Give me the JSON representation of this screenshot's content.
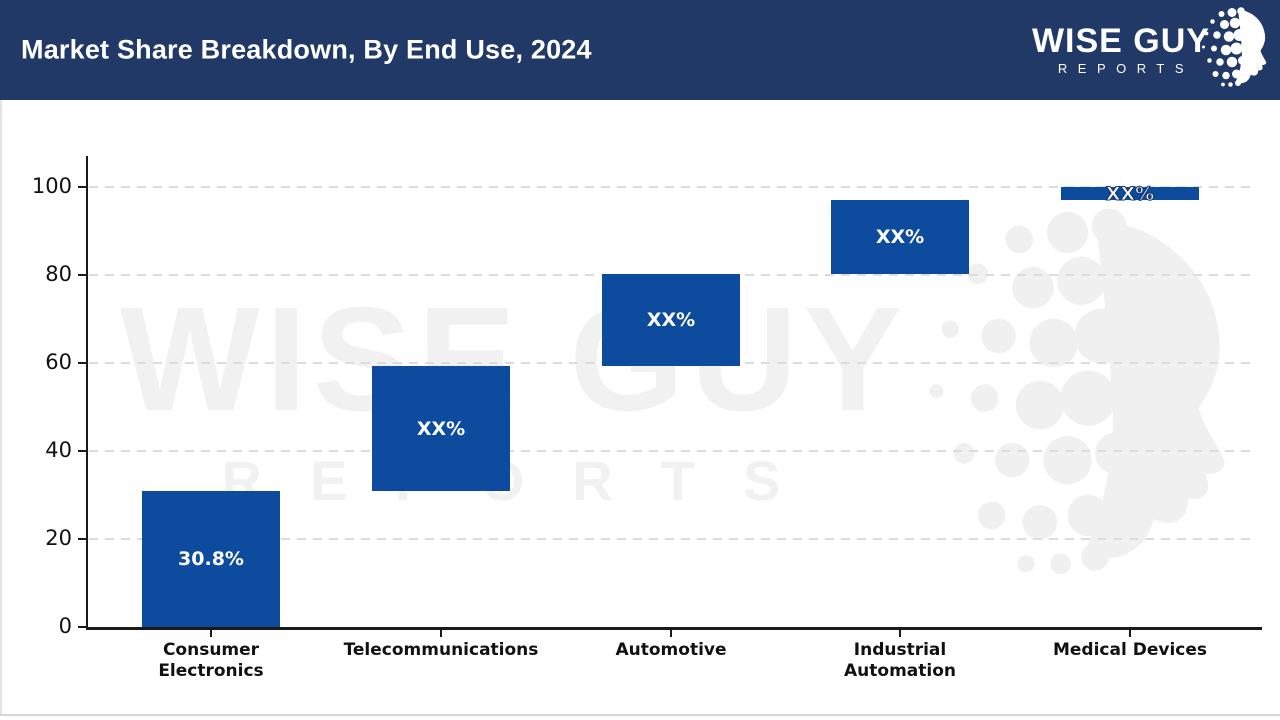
{
  "header": {
    "title": "Market Share Breakdown, By End Use, 2024",
    "brand": {
      "name_line1": "WISE GUY",
      "name_line2": "REPORTS"
    }
  },
  "watermark": {
    "line1": "WISE GUY",
    "line2": "REPORTS"
  },
  "chart_data": {
    "type": "bar",
    "subtype": "waterfall",
    "title": "Market Share Breakdown, By End Use, 2024",
    "unit": "%",
    "categories": [
      "Consumer Electronics",
      "Telecommunications",
      "Automotive",
      "Industrial Automation",
      "Medical Devices"
    ],
    "category_label_lines": [
      [
        "Consumer",
        "Electronics"
      ],
      [
        "Telecommunications"
      ],
      [
        "Automotive"
      ],
      [
        "Industrial",
        "Automation"
      ],
      [
        "Medical Devices"
      ]
    ],
    "segments": [
      {
        "category": "Consumer Electronics",
        "start": 0,
        "end": 30.8,
        "label": "30.8%"
      },
      {
        "category": "Telecommunications",
        "start": 30.8,
        "end": 59.3,
        "label": "XX%"
      },
      {
        "category": "Automotive",
        "start": 59.3,
        "end": 80.3,
        "label": "XX%"
      },
      {
        "category": "Industrial Automation",
        "start": 80.3,
        "end": 97.0,
        "label": "XX%"
      },
      {
        "category": "Medical Devices",
        "start": 97.0,
        "end": 100.0,
        "label": "XX%"
      }
    ],
    "yticks": [
      0,
      20,
      40,
      60,
      80,
      100
    ],
    "ylim": [
      0,
      105
    ],
    "xlabel": "",
    "ylabel": "",
    "grid": "dashed-horizontal",
    "legend": "none"
  },
  "colors": {
    "header_bg": "#213966",
    "bar": "#0c4b9e",
    "bar_label": "#ffffff",
    "axis": "#1a1a1a",
    "grid": "#dcdcdc",
    "watermark": "#f1f1f1"
  }
}
